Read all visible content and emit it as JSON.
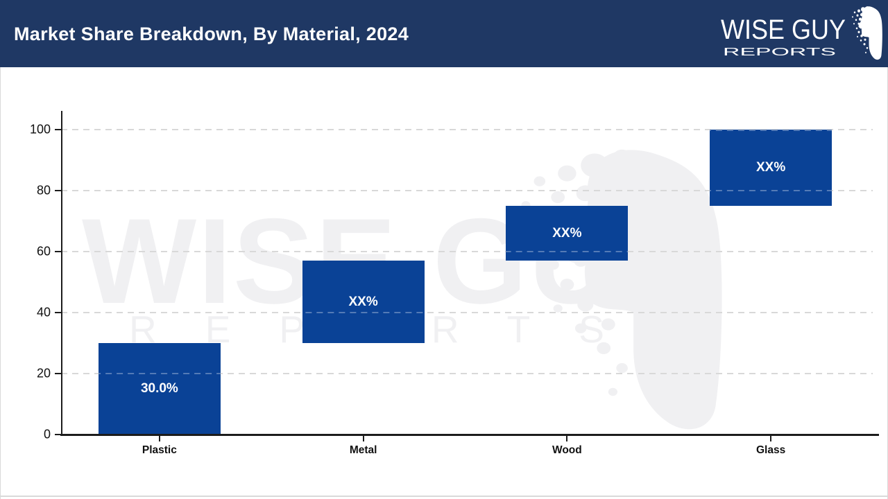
{
  "header": {
    "title": "Market Share Breakdown, By Material, 2024",
    "bg_color": "#1f3864",
    "logo": {
      "line1": "WISE GUY",
      "line2": "REPORTS"
    }
  },
  "watermark": {
    "line1": "WISE GUY",
    "line2": "REPORTS"
  },
  "chart_data": {
    "type": "bar",
    "subtype": "waterfall",
    "title": "Market Share Breakdown, By Material, 2024",
    "categories": [
      "Plastic",
      "Metal",
      "Wood",
      "Glass"
    ],
    "segments": [
      {
        "category": "Plastic",
        "start": 0,
        "end": 30,
        "label": "30.0%"
      },
      {
        "category": "Metal",
        "start": 30,
        "end": 57,
        "label": "XX%"
      },
      {
        "category": "Wood",
        "start": 57,
        "end": 75,
        "label": "XX%"
      },
      {
        "category": "Glass",
        "start": 75,
        "end": 100,
        "label": "XX%"
      }
    ],
    "ylim": [
      0,
      100
    ],
    "yticks": [
      0,
      20,
      40,
      60,
      80,
      100
    ],
    "grid": "horizontal-dashed",
    "legend": "none",
    "bar_color": "#0a4296",
    "bar_label_color": "#ffffff",
    "axis_color": "#1c1c1c",
    "gridline_color": "#d8d8d8"
  }
}
